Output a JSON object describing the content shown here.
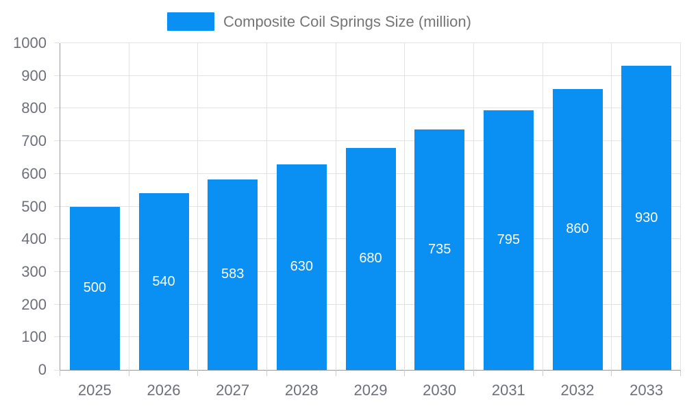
{
  "chart_data": {
    "type": "bar",
    "legend": "Composite Coil Springs Size (million)",
    "legend_position": "top",
    "categories": [
      "2025",
      "2026",
      "2027",
      "2028",
      "2029",
      "2030",
      "2031",
      "2032",
      "2033"
    ],
    "series": [
      {
        "name": "Composite Coil Springs Size (million)",
        "values": [
          500,
          540,
          583,
          630,
          680,
          735,
          795,
          860,
          930
        ]
      }
    ],
    "bar_value_labels": [
      "500",
      "540",
      "583",
      "630",
      "680",
      "735",
      "795",
      "860",
      "930"
    ],
    "xlabel": "",
    "ylabel": "",
    "ylim": [
      0,
      1000
    ],
    "yticks": [
      0,
      100,
      200,
      300,
      400,
      500,
      600,
      700,
      800,
      900,
      1000
    ],
    "grid": true,
    "colors": {
      "bar": "#0A8FF2",
      "axis_line": "#999999",
      "grid_line": "#E2E2E2",
      "tick_line": "#CCCCCC",
      "axis_text": "#6E7079",
      "legend_text": "#757575",
      "bar_label_text": "#FFFFFF",
      "background": "#FFFFFF"
    }
  }
}
